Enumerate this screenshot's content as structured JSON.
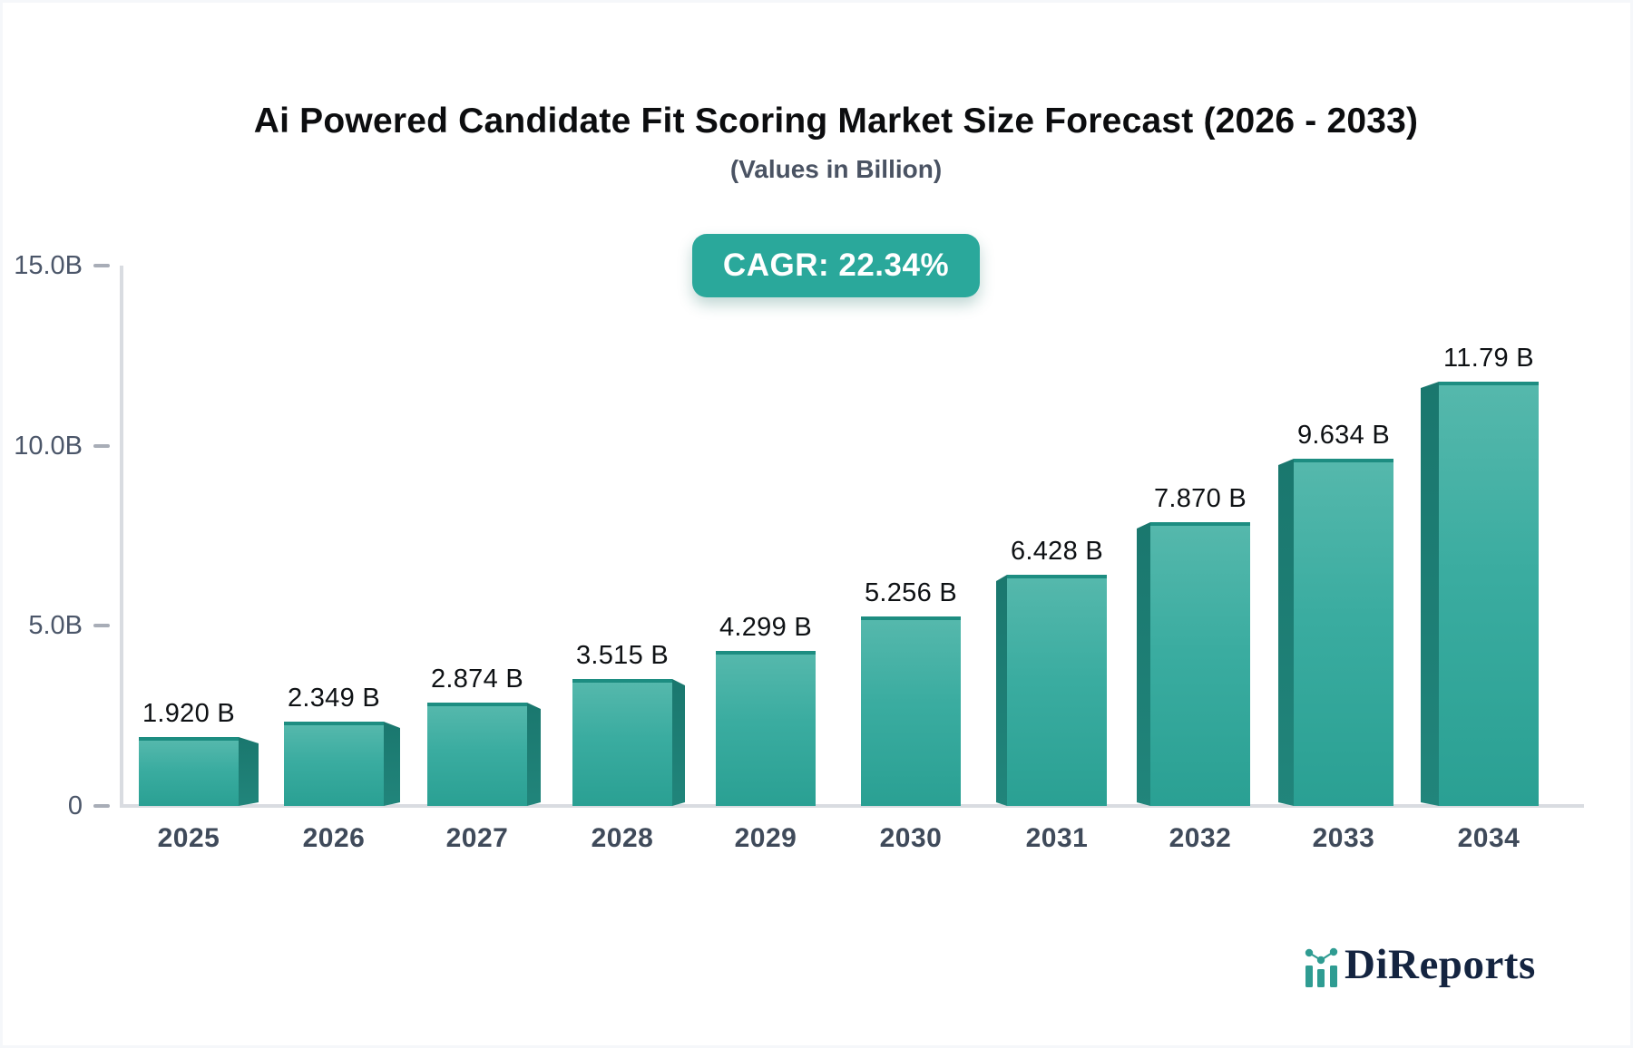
{
  "header": {
    "title": "Ai Powered Candidate Fit Scoring Market Size Forecast (2026 - 2033)",
    "subtitle": "(Values in Billion)",
    "badge": "CAGR: 22.34%"
  },
  "chart_data": {
    "type": "bar",
    "title": "Ai Powered Candidate Fit Scoring Market Size Forecast (2026 - 2033)",
    "subtitle": "(Values in Billion)",
    "annotation": "CAGR: 22.34%",
    "categories": [
      "2025",
      "2026",
      "2027",
      "2028",
      "2029",
      "2030",
      "2031",
      "2032",
      "2033",
      "2034"
    ],
    "values": [
      1.92,
      2.349,
      2.874,
      3.515,
      4.299,
      5.256,
      6.428,
      7.87,
      9.634,
      11.79
    ],
    "value_labels": [
      "1.920 B",
      "2.349 B",
      "2.874 B",
      "3.515 B",
      "4.299 B",
      "5.256 B",
      "6.428 B",
      "7.870 B",
      "9.634 B",
      "11.79 B"
    ],
    "unit": "Billion",
    "xlabel": "",
    "ylabel": "",
    "ylim": [
      0,
      15
    ],
    "yticks": [
      {
        "value": 15,
        "label": "15.0B"
      },
      {
        "value": 10,
        "label": "10.0B"
      },
      {
        "value": 5,
        "label": "5.0B"
      },
      {
        "value": 0,
        "label": "0"
      }
    ],
    "grid": false,
    "legend": false,
    "style": "3d-perspective-bars"
  },
  "colors": {
    "bar_top": "#55b8ac",
    "bar_bottom": "#2aa093",
    "bar_top_edge": "#1d8d81",
    "bar_side": "#1f7e75",
    "badge_bg": "#2aa89b",
    "axis_line": "#d9dce1",
    "tick_dash": "#a8adb7",
    "axis_text": "#4b5669",
    "category_text": "#3f4a5a",
    "value_text": "#0e1114",
    "logo_teal": "#2f9c92",
    "logo_navy": "#142440"
  },
  "logo": {
    "text": "DiReports"
  }
}
